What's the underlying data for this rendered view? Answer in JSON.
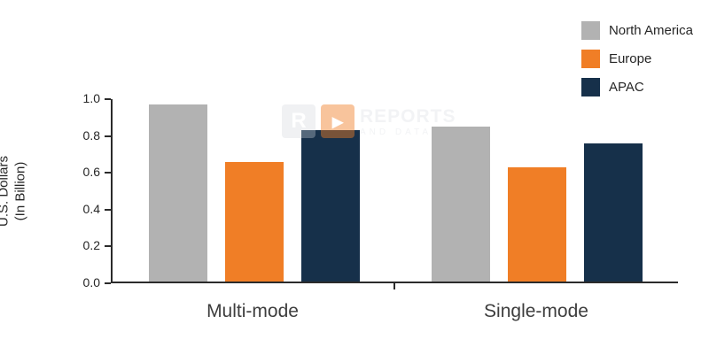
{
  "chart_data": {
    "type": "bar",
    "title": "",
    "categories": [
      "Multi-mode",
      "Single-mode"
    ],
    "series": [
      {
        "name": "North America",
        "color": "#b2b2b2",
        "values": [
          0.96,
          0.84
        ]
      },
      {
        "name": "Europe",
        "color": "#f07e26",
        "values": [
          0.65,
          0.62
        ]
      },
      {
        "name": "APAC",
        "color": "#16304a",
        "values": [
          0.82,
          0.75
        ]
      }
    ],
    "ylabel_line1": "U.S. Dollars",
    "ylabel_line2": "(In Billion)",
    "ylim": [
      0,
      1.0
    ],
    "yticks": [
      0.0,
      0.2,
      0.4,
      0.6,
      0.8,
      1.0
    ],
    "grid": false,
    "legend_position": "top-right"
  },
  "watermark": {
    "title": "REPORTS",
    "subtitle": "AND DATA",
    "icon_letter": "R",
    "accent_color": "#f07e26"
  }
}
